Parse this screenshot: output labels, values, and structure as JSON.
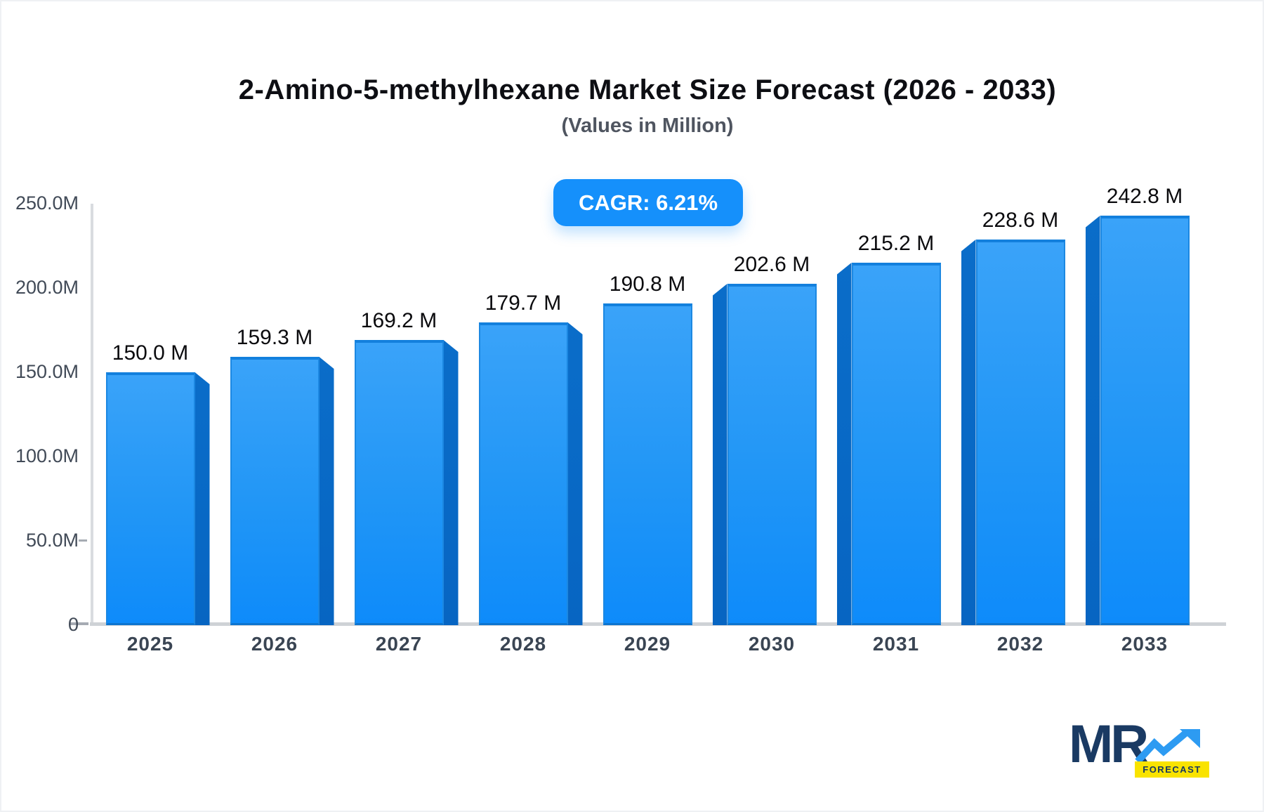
{
  "header": {
    "title": "2-Amino-5-methylhexane Market Size Forecast (2026 - 2033)",
    "subtitle": "(Values in Million)",
    "cagr_label": "CAGR: 6.21%"
  },
  "chart_data": {
    "type": "bar",
    "title": "2-Amino-5-methylhexane Market Size Forecast (2026 - 2033)",
    "subtitle": "(Values in Million)",
    "categories": [
      "2025",
      "2026",
      "2027",
      "2028",
      "2029",
      "2030",
      "2031",
      "2032",
      "2033"
    ],
    "values": [
      150.0,
      159.3,
      169.2,
      179.7,
      190.8,
      202.6,
      215.2,
      228.6,
      242.8
    ],
    "bar_labels": [
      "150.0 M",
      "159.3 M",
      "169.2 M",
      "179.7 M",
      "190.8 M",
      "202.6 M",
      "215.2 M",
      "228.6 M",
      "242.8 M"
    ],
    "unit": "Million",
    "cagr": "6.21%",
    "xlabel": "",
    "ylabel": "",
    "ylim": [
      0,
      250
    ],
    "y_ticks": [
      "250.0M",
      "200.0M",
      "150.0M",
      "100.0M",
      "50.0M",
      "0"
    ],
    "grid": false,
    "legend": false,
    "bar_color": "#2196f6",
    "bar_side_color": "#0968c6",
    "effect": "3d-perspective-toward-center"
  },
  "logo": {
    "name": "MR",
    "tagline": "FORECAST"
  },
  "colors": {
    "badge_bg": "#1590fb",
    "badge_text": "#ffffff",
    "title_text": "#0d0e13",
    "subtitle_text": "#4f5560",
    "axis_line": "#ced2d6",
    "logo_navy": "#1a3a63",
    "logo_yellow": "#f9e300",
    "logo_arrow_blue": "#2d9bf2"
  }
}
